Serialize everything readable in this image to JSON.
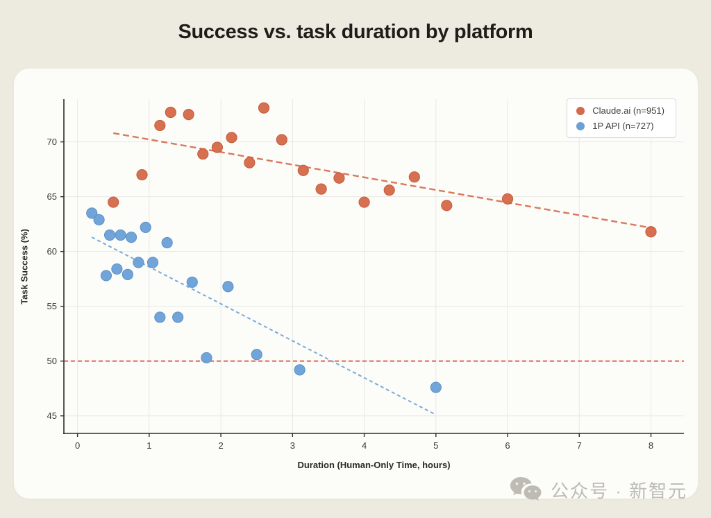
{
  "page": {
    "title": "Success vs. task duration by platform",
    "background_color": "#edebdf",
    "card_color": "#fcfcf9"
  },
  "watermark": {
    "icon": "wechat-icon",
    "text": "公众号 · 新智元",
    "color": "#aeaca4"
  },
  "chart_data": {
    "type": "scatter",
    "title": "Success vs. task duration by platform",
    "xlabel": "Duration (Human-Only Time, hours)",
    "ylabel": "Task Success (%)",
    "xlim": [
      -0.19,
      8.46
    ],
    "ylim": [
      43.4,
      73.9
    ],
    "xticks": [
      0,
      1,
      2,
      3,
      4,
      5,
      6,
      7,
      8
    ],
    "yticks": [
      45,
      50,
      55,
      60,
      65,
      70
    ],
    "grid": true,
    "grid_color": "#e9e8e3",
    "legend_position": "upper right",
    "reference_line": {
      "y": 50,
      "color": "#e05a47",
      "style": "dashed"
    },
    "series": [
      {
        "name": "Claude.ai (n=951)",
        "color": "#d5694a",
        "edge_color": "#c35b3c",
        "points": [
          [
            0.5,
            64.5
          ],
          [
            0.9,
            67.0
          ],
          [
            1.15,
            71.5
          ],
          [
            1.3,
            72.7
          ],
          [
            1.55,
            72.5
          ],
          [
            1.75,
            68.9
          ],
          [
            1.95,
            69.5
          ],
          [
            2.15,
            70.4
          ],
          [
            2.4,
            68.1
          ],
          [
            2.6,
            73.1
          ],
          [
            2.85,
            70.2
          ],
          [
            3.15,
            67.4
          ],
          [
            3.4,
            65.7
          ],
          [
            3.65,
            66.7
          ],
          [
            4.0,
            64.5
          ],
          [
            4.35,
            65.6
          ],
          [
            4.7,
            66.8
          ],
          [
            5.15,
            64.2
          ],
          [
            6.0,
            64.8
          ],
          [
            8.0,
            61.8
          ]
        ],
        "trendline": {
          "x1": 0.5,
          "y1": 70.8,
          "x2": 8.05,
          "y2": 62.1
        }
      },
      {
        "name": "1P API (n=727)",
        "color": "#6ba0d6",
        "edge_color": "#5d92c8",
        "points": [
          [
            0.2,
            63.5
          ],
          [
            0.3,
            62.9
          ],
          [
            0.4,
            57.8
          ],
          [
            0.45,
            61.5
          ],
          [
            0.55,
            58.4
          ],
          [
            0.6,
            61.5
          ],
          [
            0.7,
            57.9
          ],
          [
            0.75,
            61.3
          ],
          [
            0.85,
            59.0
          ],
          [
            0.95,
            62.2
          ],
          [
            1.05,
            59.0
          ],
          [
            1.15,
            54.0
          ],
          [
            1.25,
            60.8
          ],
          [
            1.4,
            54.0
          ],
          [
            1.6,
            57.2
          ],
          [
            1.8,
            50.3
          ],
          [
            2.1,
            56.8
          ],
          [
            2.5,
            50.6
          ],
          [
            3.1,
            49.2
          ],
          [
            5.0,
            47.6
          ]
        ],
        "trendline": {
          "x1": 0.2,
          "y1": 61.3,
          "x2": 5.0,
          "y2": 45.1
        }
      }
    ]
  }
}
